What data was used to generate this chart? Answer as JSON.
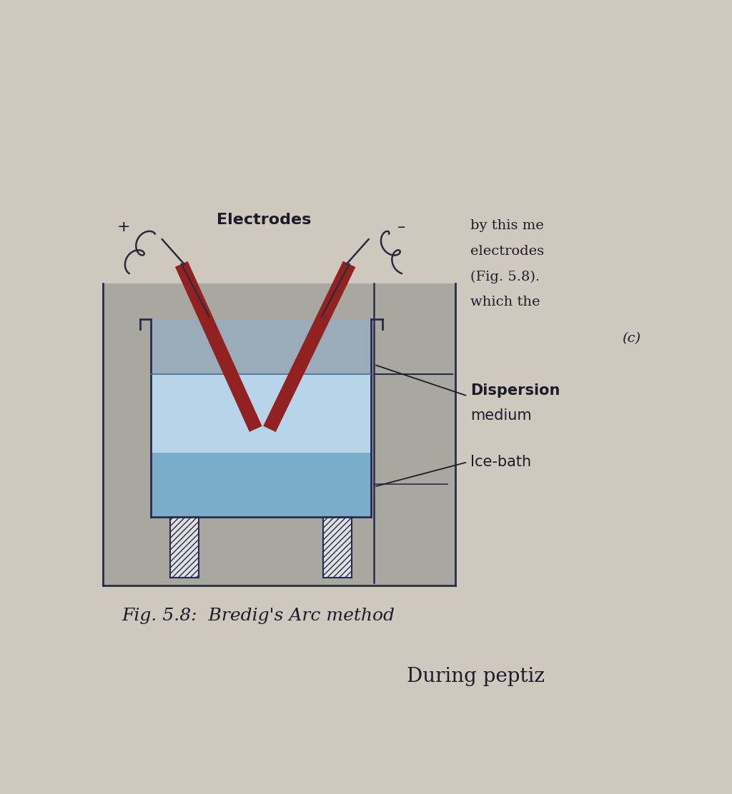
{
  "title": "Fig. 5.8:  Bredig's Arc method",
  "subtitle": "During peptiz",
  "label_electrodes": "Electrodes",
  "label_plus": "+",
  "label_minus": "–",
  "label_dispersion_1": "Dispersion",
  "label_dispersion_2": "medium",
  "label_icebath": "Ice-bath",
  "label_c": "(c)",
  "label_bythis_1": "by this me",
  "label_bythis_2": "electrodes",
  "label_bythis_3": "(Fig. 5.8).",
  "label_bythis_4": "which the",
  "bg_color": "#cfc8bf",
  "paper_color": "#d8d2ca",
  "electrode_color": "#922222",
  "wire_color": "#2a2a40",
  "outer_fill": "#a8a8a0",
  "inner_liquid_top": "#b8d4e8",
  "inner_liquid_bot": "#7aaec8",
  "hatch_face": "#e0e0e0",
  "container_edge": "#2a2a50",
  "title_fontsize": 18,
  "label_fontsize": 15,
  "side_fontsize": 14,
  "cap_fontsize": 20,
  "elec_lw": 14
}
